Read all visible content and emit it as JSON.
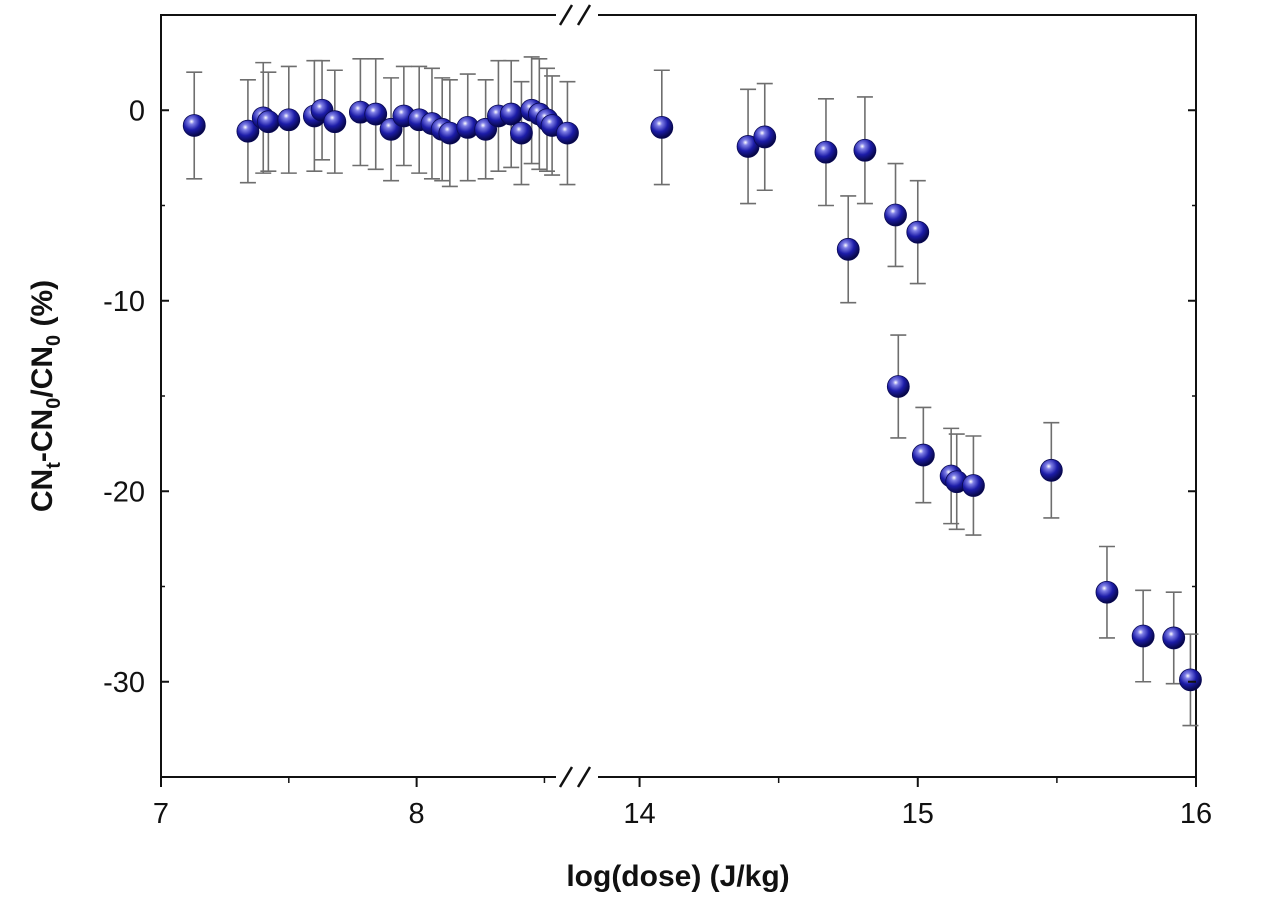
{
  "chart_data": {
    "type": "scatter",
    "title": "",
    "xlabel": "log(dose) (J/kg)",
    "ylabel": "CN_t-CN_0/CN_0 (%)",
    "ylabel_parts": {
      "main1": "CN",
      "sub1": "t",
      "main2": "-CN",
      "sub2": "0",
      "main3": "/CN",
      "sub3": "0",
      "tail": " (%)"
    },
    "ylim": [
      -35,
      5
    ],
    "y_ticks": [
      0,
      -10,
      -20,
      -30
    ],
    "y_tick_labels": [
      "0",
      "-10",
      "-20",
      "-30"
    ],
    "x_axis_break": true,
    "x_segments": [
      {
        "xlim": [
          7,
          8.6
        ],
        "ticks": [
          7,
          8
        ],
        "tick_labels": [
          "7",
          "8"
        ],
        "minor_ticks": [
          7.5,
          8.5
        ]
      },
      {
        "xlim": [
          13.75,
          16
        ],
        "ticks": [
          14,
          15,
          16
        ],
        "tick_labels": [
          "14",
          "15",
          "16"
        ],
        "minor_ticks": [
          14.5,
          15.5
        ]
      }
    ],
    "grid": false,
    "legend": "none",
    "marker_color": "#1a1aa6",
    "series": [
      {
        "points": [
          {
            "x": 7.13,
            "y": -0.8,
            "err": 2.8
          },
          {
            "x": 7.34,
            "y": -1.1,
            "err": 2.7
          },
          {
            "x": 7.4,
            "y": -0.4,
            "err": 2.9
          },
          {
            "x": 7.42,
            "y": -0.6,
            "err": 2.6
          },
          {
            "x": 7.5,
            "y": -0.5,
            "err": 2.8
          },
          {
            "x": 7.6,
            "y": -0.3,
            "err": 2.9
          },
          {
            "x": 7.63,
            "y": 0.0,
            "err": 2.6
          },
          {
            "x": 7.68,
            "y": -0.6,
            "err": 2.7
          },
          {
            "x": 7.78,
            "y": -0.1,
            "err": 2.8
          },
          {
            "x": 7.84,
            "y": -0.2,
            "err": 2.9
          },
          {
            "x": 7.9,
            "y": -1.0,
            "err": 2.7
          },
          {
            "x": 7.95,
            "y": -0.3,
            "err": 2.6
          },
          {
            "x": 8.01,
            "y": -0.5,
            "err": 2.8
          },
          {
            "x": 8.06,
            "y": -0.7,
            "err": 2.9
          },
          {
            "x": 8.1,
            "y": -1.0,
            "err": 2.7
          },
          {
            "x": 8.13,
            "y": -1.2,
            "err": 2.8
          },
          {
            "x": 8.2,
            "y": -0.9,
            "err": 2.8
          },
          {
            "x": 8.27,
            "y": -1.0,
            "err": 2.6
          },
          {
            "x": 8.32,
            "y": -0.3,
            "err": 2.9
          },
          {
            "x": 8.37,
            "y": -0.2,
            "err": 2.8
          },
          {
            "x": 8.41,
            "y": -1.2,
            "err": 2.7
          },
          {
            "x": 8.45,
            "y": 0.0,
            "err": 2.8
          },
          {
            "x": 8.48,
            "y": -0.2,
            "err": 2.9
          },
          {
            "x": 8.51,
            "y": -0.5,
            "err": 2.7
          },
          {
            "x": 8.53,
            "y": -0.8,
            "err": 2.6
          },
          {
            "x": 8.59,
            "y": -1.2,
            "err": 2.7
          },
          {
            "x": 14.08,
            "y": -0.9,
            "err": 3.0
          },
          {
            "x": 14.39,
            "y": -1.9,
            "err": 3.0
          },
          {
            "x": 14.45,
            "y": -1.4,
            "err": 2.8
          },
          {
            "x": 14.67,
            "y": -2.2,
            "err": 2.8
          },
          {
            "x": 14.75,
            "y": -7.3,
            "err": 2.8
          },
          {
            "x": 14.81,
            "y": -2.1,
            "err": 2.8
          },
          {
            "x": 14.92,
            "y": -5.5,
            "err": 2.7
          },
          {
            "x": 14.93,
            "y": -14.5,
            "err": 2.7
          },
          {
            "x": 15.0,
            "y": -6.4,
            "err": 2.7
          },
          {
            "x": 15.02,
            "y": -18.1,
            "err": 2.5
          },
          {
            "x": 15.12,
            "y": -19.2,
            "err": 2.5
          },
          {
            "x": 15.14,
            "y": -19.5,
            "err": 2.5
          },
          {
            "x": 15.2,
            "y": -19.7,
            "err": 2.6
          },
          {
            "x": 15.48,
            "y": -18.9,
            "err": 2.5
          },
          {
            "x": 15.68,
            "y": -25.3,
            "err": 2.4
          },
          {
            "x": 15.81,
            "y": -27.6,
            "err": 2.4
          },
          {
            "x": 15.92,
            "y": -27.7,
            "err": 2.4
          },
          {
            "x": 15.98,
            "y": -29.9,
            "err": 2.4
          }
        ]
      }
    ]
  }
}
